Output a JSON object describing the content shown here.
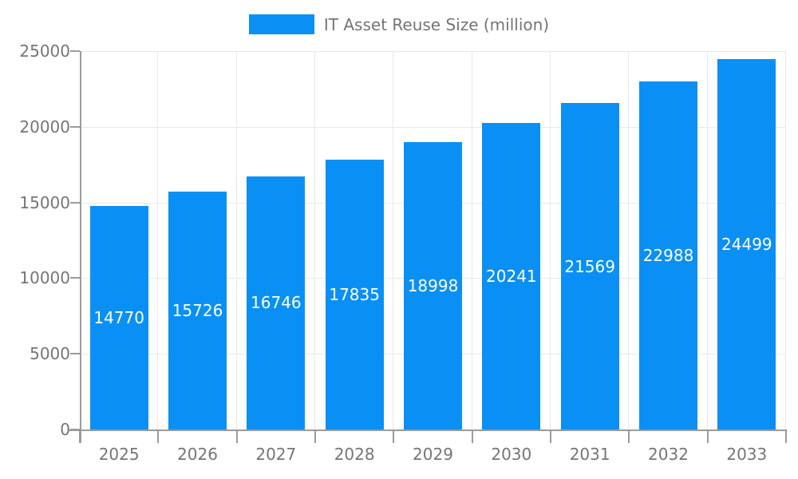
{
  "chart_data": {
    "type": "bar",
    "title": "IT Asset Reuse Size (million)",
    "categories": [
      "2025",
      "2026",
      "2027",
      "2028",
      "2029",
      "2030",
      "2031",
      "2032",
      "2033"
    ],
    "values": [
      14770,
      15726,
      16746,
      17835,
      18998,
      20241,
      21569,
      22988,
      24499
    ],
    "xlabel": "",
    "ylabel": "",
    "ylim": [
      0,
      25000
    ],
    "yticks": [
      0,
      5000,
      10000,
      15000,
      20000,
      25000
    ],
    "grid": "horizontal and vertical light gridlines",
    "legend_position": "top-center",
    "value_labels": "white, centered inside bars",
    "colors": {
      "bar": "#0a90f5",
      "axis": "#9b9b9b",
      "gridline": "#e8e8e8",
      "tick_text": "#757575",
      "value_label_text": "#ffffff",
      "background": "#ffffff"
    }
  }
}
